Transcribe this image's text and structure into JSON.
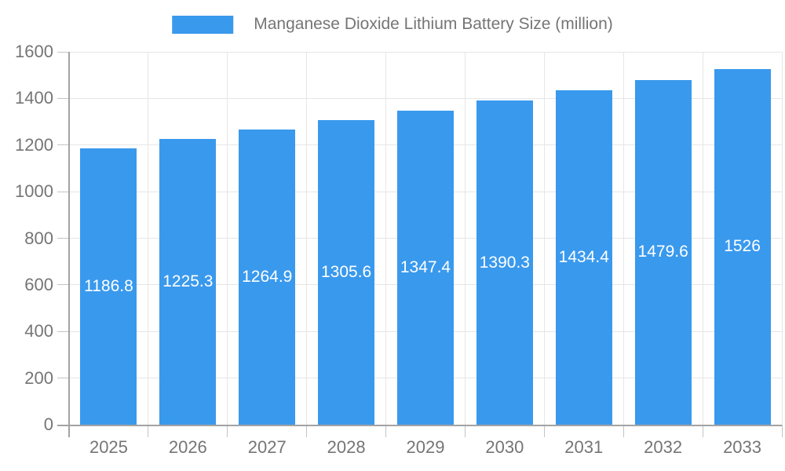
{
  "legend": {
    "label": "Manganese Dioxide Lithium Battery Size (million)",
    "swatch_color": "#3999ED"
  },
  "chart_data": {
    "type": "bar",
    "title": "Manganese Dioxide Lithium Battery Size (million)",
    "categories": [
      "2025",
      "2026",
      "2027",
      "2028",
      "2029",
      "2030",
      "2031",
      "2032",
      "2033"
    ],
    "values": [
      1186.8,
      1225.3,
      1264.9,
      1305.6,
      1347.4,
      1390.3,
      1434.4,
      1479.6,
      1526
    ],
    "value_labels": [
      "1186.8",
      "1225.3",
      "1264.9",
      "1305.6",
      "1347.4",
      "1390.3",
      "1434.4",
      "1479.6",
      "1526"
    ],
    "xlabel": "",
    "ylabel": "",
    "ylim": [
      0,
      1600
    ],
    "ytick_interval": 200,
    "ytick_labels": [
      "0",
      "200",
      "400",
      "600",
      "800",
      "1000",
      "1200",
      "1400",
      "1600"
    ],
    "grid": true,
    "legend_position": "top",
    "value_label_position": "inside-middle"
  },
  "colors": {
    "bar": "#3999ED",
    "bar_value_text": "#ffffff",
    "axis_text": "#757575",
    "legend_text": "#757575",
    "grid_line": "#e6e6e6",
    "tick_line": "#c4c4c4",
    "axis_line": "#a3a3a3",
    "background": "#ffffff"
  }
}
